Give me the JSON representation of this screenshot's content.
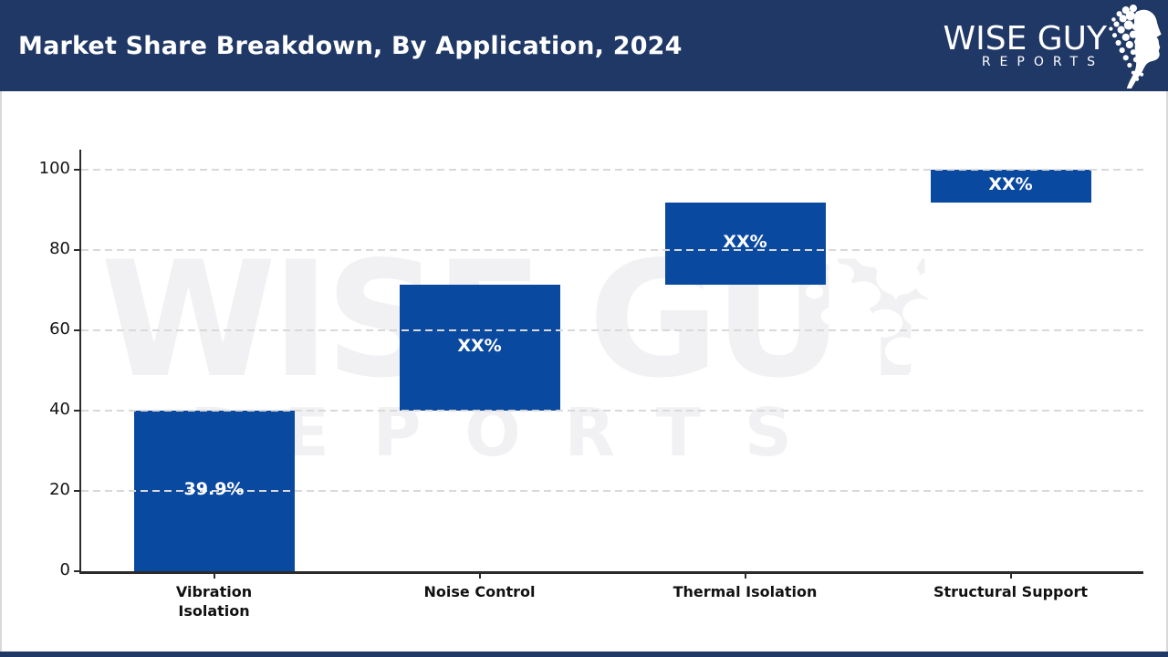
{
  "header": {
    "title": "Market Share Breakdown, By Application, 2024",
    "logo": {
      "name_top": "WISE GUY",
      "name_bottom": "REPORTS"
    }
  },
  "watermark": {
    "text_top": "WISE GUY",
    "text_bottom": "REPORTS"
  },
  "colors": {
    "header_bg": "#203866",
    "bar_fill": "#0a49a0",
    "grid_line": "#d9d9d9",
    "axis_line": "#2b2b2b",
    "bar_label": "#ffffff",
    "watermark": "#f1f1f3"
  },
  "chart_data": {
    "type": "bar",
    "subtype": "waterfall",
    "title": "Market Share Breakdown, By Application, 2024",
    "categories": [
      "Vibration\nIsolation",
      "Noise Control",
      "Thermal Isolation",
      "Structural Support"
    ],
    "segments": [
      {
        "category": "Vibration Isolation",
        "start": 0,
        "end": 39.9,
        "label": "39.9%"
      },
      {
        "category": "Noise Control",
        "start": 39.9,
        "end": 71.3,
        "label": "XX%"
      },
      {
        "category": "Thermal Isolation",
        "start": 71.3,
        "end": 91.9,
        "label": "XX%"
      },
      {
        "category": "Structural Support",
        "start": 91.9,
        "end": 100,
        "label": "XX%"
      }
    ],
    "yticks": [
      0,
      20,
      40,
      60,
      80,
      100
    ],
    "ylim": [
      0,
      105
    ],
    "xlabel": "",
    "ylabel": "",
    "grid": "horizontal-dashed",
    "legend": null
  }
}
